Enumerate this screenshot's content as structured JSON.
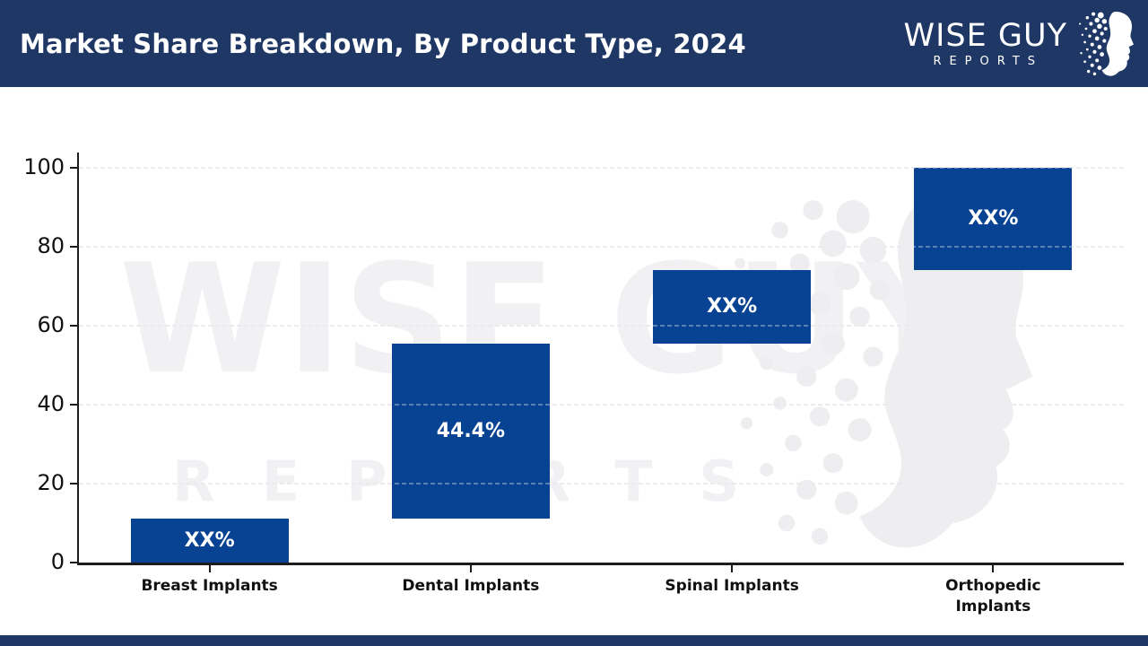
{
  "header": {
    "title": "Market Share Breakdown, By Product Type, 2024",
    "bg_color": "#1f3765",
    "brand": {
      "line1": "WISE GUY",
      "line2": "REPORTS"
    }
  },
  "watermark": {
    "line1": "WISE GUY",
    "line2": "REPORTS",
    "text_color": "#f1f1f4",
    "face_color": "#eeeef1"
  },
  "chart_data": {
    "type": "bar",
    "subtype": "floating-waterfall",
    "title": "Market Share Breakdown, By Product Type, 2024",
    "categories": [
      "Breast Implants",
      "Dental Implants",
      "Spinal Implants",
      "Orthopedic Implants"
    ],
    "series": [
      {
        "name": "Market Share (%)",
        "segments": [
          {
            "category": "Breast Implants",
            "start": 0,
            "end": 11.1,
            "label": "XX%"
          },
          {
            "category": "Dental Implants",
            "start": 11.1,
            "end": 55.5,
            "label": "44.4%"
          },
          {
            "category": "Spinal Implants",
            "start": 55.5,
            "end": 74.1,
            "label": "XX%"
          },
          {
            "category": "Orthopedic Implants",
            "start": 74.1,
            "end": 100,
            "label": "XX%"
          }
        ]
      }
    ],
    "ylim": [
      0,
      100
    ],
    "yticks": [
      0,
      20,
      40,
      60,
      80,
      100
    ],
    "grid": "horizontal-dashed",
    "legend": null,
    "bar_color": "#074293",
    "bar_label_color": "#ffffff",
    "axis_color": "#1c1c1c"
  },
  "footer": {
    "bg_color": "#1f3765"
  }
}
